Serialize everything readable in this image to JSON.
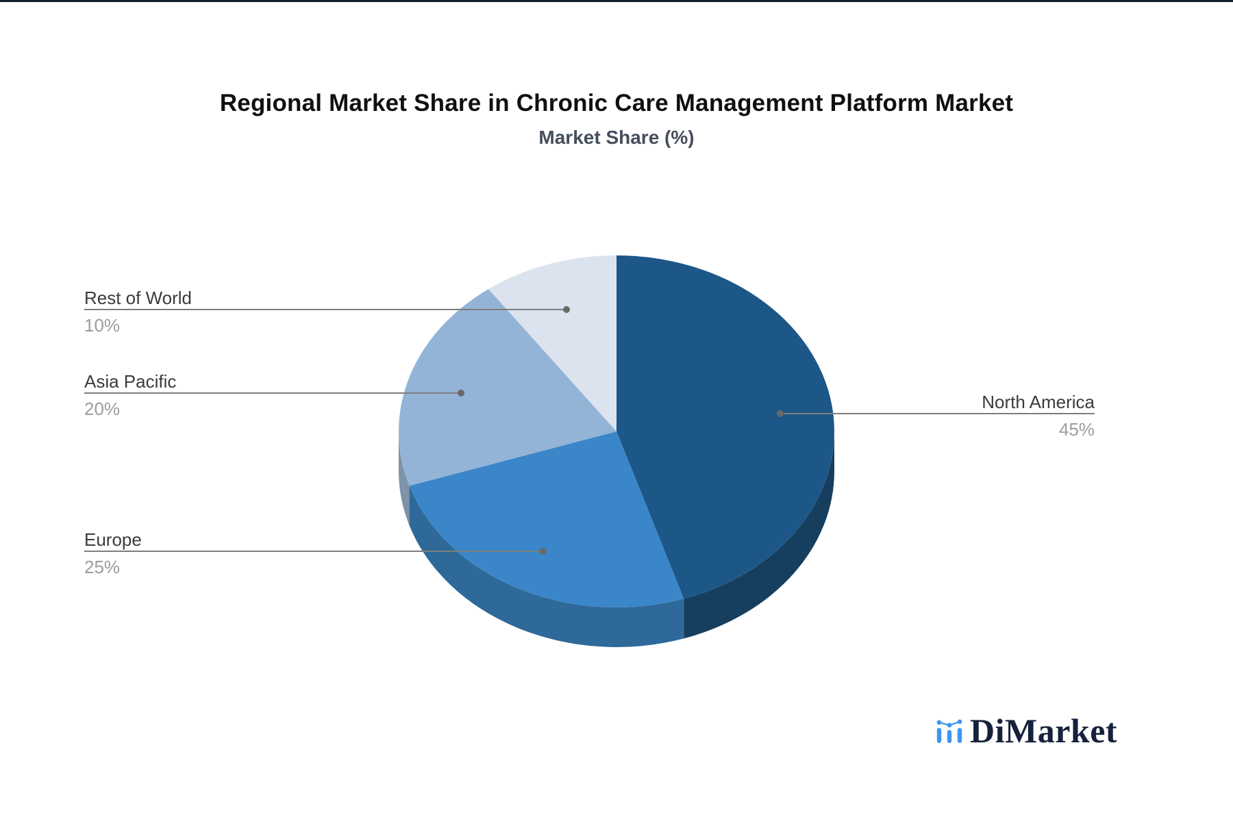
{
  "chart_data": {
    "type": "pie",
    "style": "3d",
    "title": "Regional Market Share in Chronic Care Management Platform Market",
    "subtitle": "Market Share (%)",
    "unit": "%",
    "direction": "clockwise",
    "start_angle_deg": 0,
    "categories": [
      "North America",
      "Europe",
      "Asia Pacific",
      "Rest of World"
    ],
    "values": [
      45,
      25,
      20,
      10
    ],
    "slice_colors": [
      "#1d5787",
      "#3a86c8",
      "#94b4d7",
      "#dbe3ee"
    ],
    "slice_side_colors": [
      "#153e5f",
      "#2e6999",
      "#7e93a8",
      null
    ],
    "labels": [
      {
        "name": "North America",
        "value_text": "45%"
      },
      {
        "name": "Europe",
        "value_text": "25%"
      },
      {
        "name": "Asia Pacific",
        "value_text": "20%"
      },
      {
        "name": "Rest of World",
        "value_text": "10%"
      }
    ],
    "legend_position": "callout-labels",
    "grid": false
  },
  "colors": {
    "background": "#ffffff",
    "top_border": "#13202e",
    "title_text": "#101010",
    "subtitle_text": "#454e5c",
    "label_name_text": "#3b3b3b",
    "label_value_text": "#9c9c9c",
    "leader_line": "#7d7d7d",
    "leader_dot": "#696969",
    "logo_text": "#16213c",
    "logo_icon": "#3f97f1"
  },
  "branding": {
    "logo_text": "DiMarket"
  }
}
